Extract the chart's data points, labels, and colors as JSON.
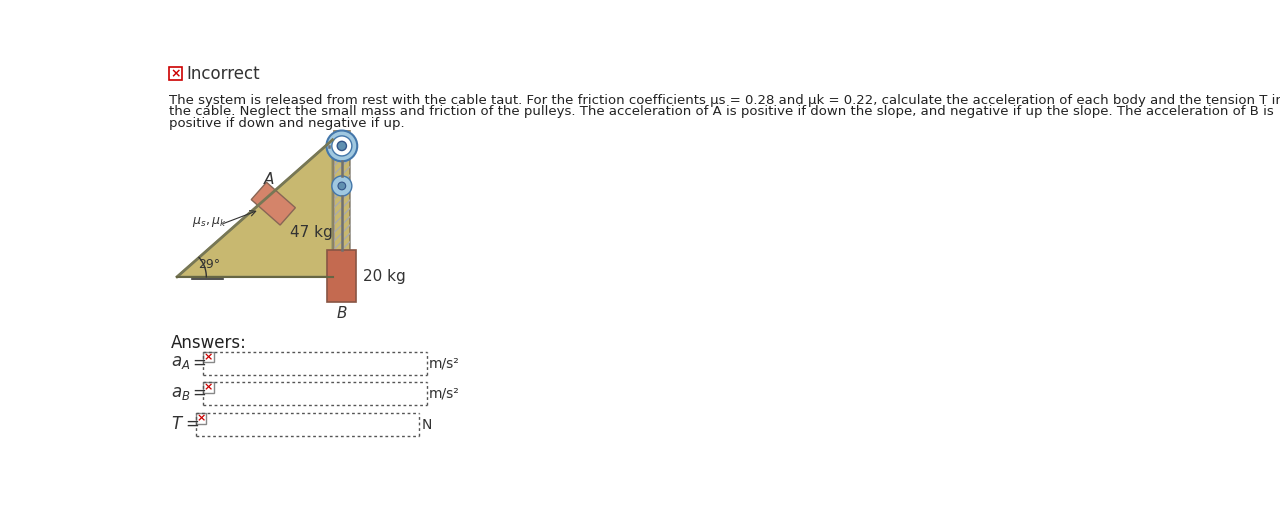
{
  "bg_color": "#ffffff",
  "incorrect_icon_color": "#cc0000",
  "incorrect_text": "Incorrect",
  "problem_text_line1": "The system is released from rest with the cable taut. For the friction coefficients μs = 0.28 and μk = 0.22, calculate the acceleration of each body and the tension T in",
  "problem_text_line2": "the cable. Neglect the small mass and friction of the pulleys. The acceleration of A is positive if down the slope, and negative if up the slope. The acceleration of B is",
  "problem_text_line3": "positive if down and negative if up.",
  "mass_A": "47 kg",
  "mass_B": "20 kg",
  "angle": "29",
  "answers_label": "Answers:",
  "unit_ms2": "m/s²",
  "unit_N": "N",
  "slope_color": "#c8b870",
  "block_A_color": "#d4846a",
  "block_B_color": "#c46a50",
  "cable_color": "#707070",
  "pulley_color_outer": "#a0c8e0",
  "pulley_color_inner": "#6090b0",
  "wall_color": "#c8b870",
  "dotted_box_color": "#555555",
  "x_icon_color": "#cc0000"
}
